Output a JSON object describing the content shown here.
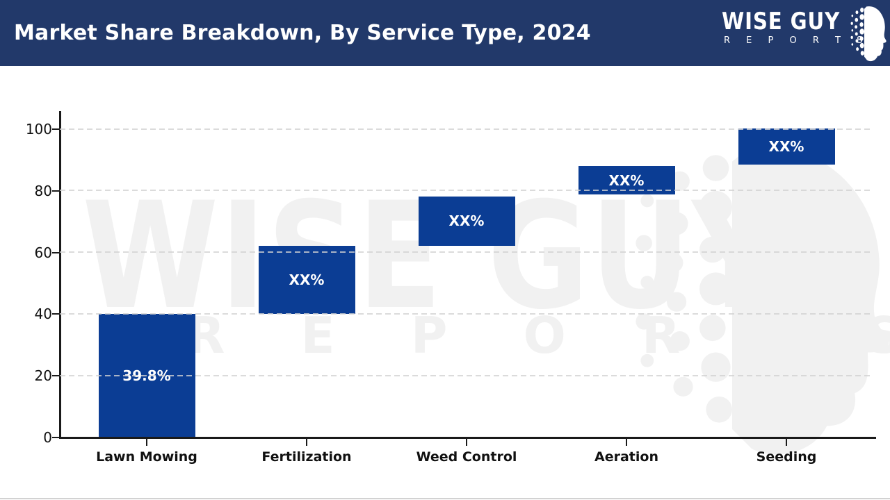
{
  "header": {
    "title": "Market Share Breakdown, By Service Type, 2024",
    "background_color": "#22396a",
    "logo": {
      "line1": "WISE GUY",
      "line2": "R E P O R T S"
    }
  },
  "watermark": {
    "line1": "WISE GUY",
    "line2": "R E P O R T S"
  },
  "chart_data": {
    "type": "bar",
    "subtype": "waterfall",
    "title": "Market Share Breakdown, By Service Type, 2024",
    "categories": [
      "Lawn Mowing",
      "Fertilization",
      "Weed Control",
      "Aeration",
      "Seeding"
    ],
    "bars": [
      {
        "category": "Lawn Mowing",
        "start": 0,
        "end": 39.8,
        "label": "39.8%"
      },
      {
        "category": "Fertilization",
        "start": 39.8,
        "end": 62.0,
        "label": "XX%"
      },
      {
        "category": "Weed Control",
        "start": 62.0,
        "end": 78.0,
        "label": "XX%"
      },
      {
        "category": "Aeration",
        "start": 78.5,
        "end": 87.8,
        "label": "XX%"
      },
      {
        "category": "Seeding",
        "start": 88.3,
        "end": 100.0,
        "label": "XX%"
      }
    ],
    "y_ticks": [
      0,
      20,
      40,
      60,
      80,
      100
    ],
    "ylim": [
      0,
      105
    ],
    "xlabel": "",
    "ylabel": "",
    "grid": true,
    "grid_style": "dashed",
    "legend": false,
    "bar_color": "#0b3d94",
    "label_color": "#ffffff",
    "axis_color": "#1a1a1a",
    "grid_color": "#dcdcdc"
  }
}
